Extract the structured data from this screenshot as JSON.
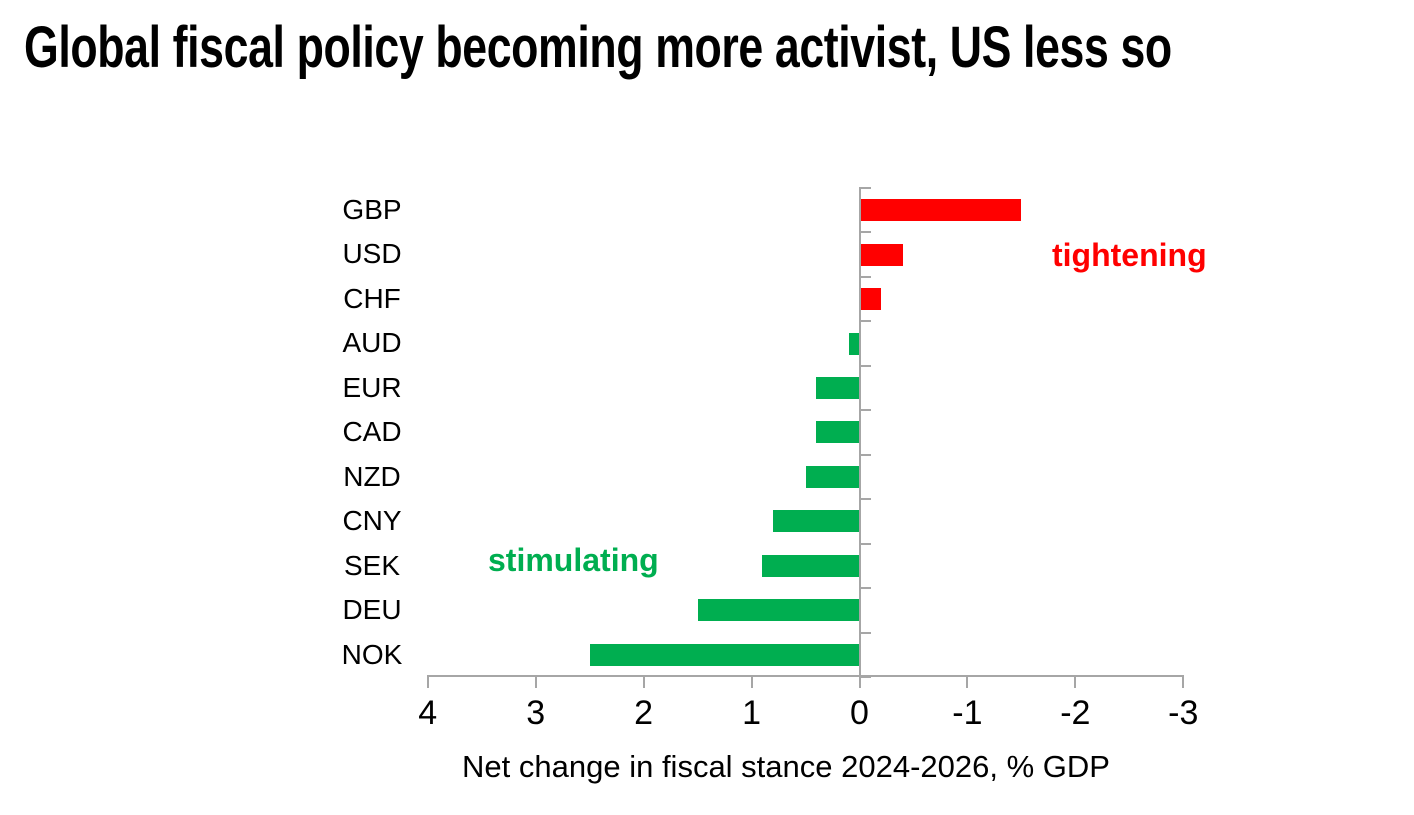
{
  "title": "Global fiscal policy becoming more activist, US less so",
  "annotations": {
    "tightening": {
      "label": "tightening",
      "color": "#FF0000"
    },
    "stimulating": {
      "label": "stimulating",
      "color": "#00AE50"
    }
  },
  "chart_data": {
    "type": "bar",
    "orientation": "horizontal",
    "title": "Global fiscal policy becoming more activist, US less so",
    "xlabel": "Net change in fiscal stance 2024-2026, % GDP",
    "categories": [
      "GBP",
      "USD",
      "CHF",
      "AUD",
      "EUR",
      "CAD",
      "NZD",
      "CNY",
      "SEK",
      "DEU",
      "NOK"
    ],
    "values": [
      -1.5,
      -0.4,
      -0.2,
      0.1,
      0.4,
      0.4,
      0.5,
      0.8,
      0.9,
      1.5,
      2.5
    ],
    "value_unit": "% GDP",
    "x_ticks": [
      4,
      3,
      2,
      1,
      0,
      -1,
      -2,
      -3
    ],
    "xlim": [
      4,
      -3
    ],
    "x_axis_reversed": true,
    "positive_label": "stimulating",
    "negative_label": "tightening",
    "positive_color": "#00AE50",
    "negative_color": "#FF0000",
    "axis_color": "#A6A6A6",
    "grid": false,
    "legend": false
  }
}
